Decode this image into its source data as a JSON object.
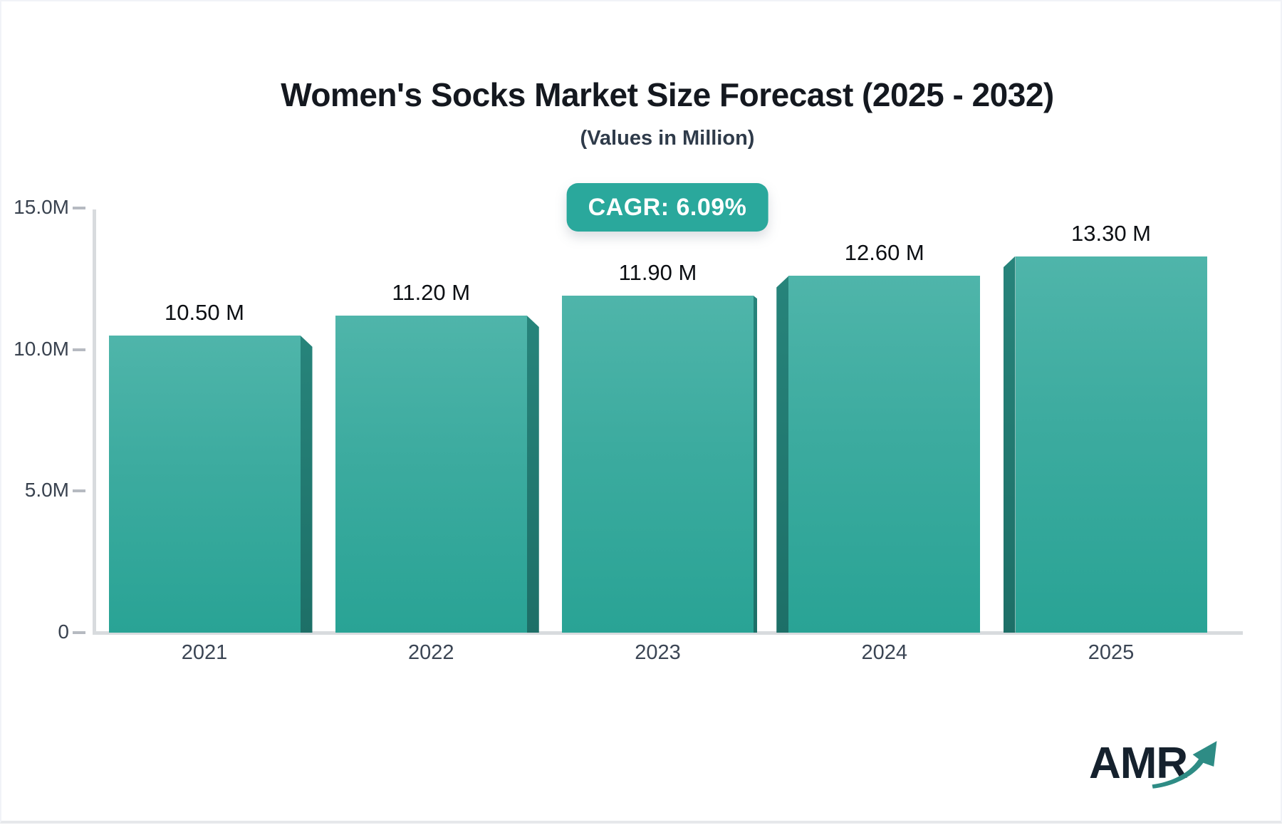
{
  "page": {
    "title": "Women's Socks Market Size Forecast (2025 - 2032)",
    "subtitle": "(Values in Million)",
    "cagr_label": "CAGR: 6.09%",
    "logo_text": "AMR"
  },
  "colors": {
    "bar_face_top": "#4fb5aa",
    "bar_face_bottom": "#29a395",
    "bar_side_top": "#27847b",
    "bar_side_bottom": "#1d6f67",
    "badge_bg": "#2aa89c",
    "badge_text": "#ffffff",
    "axis_line": "#d8dbde",
    "tick_dash": "#b6bac1",
    "tick_text": "#39424f",
    "title_text": "#14181f",
    "value_text": "#0c0f13",
    "logo_navy": "#15212d",
    "logo_arrow_teal": "#2e8c85"
  },
  "chart_data": {
    "type": "bar",
    "title": "Women's Socks Market Size Forecast (2025 - 2032)",
    "subtitle": "(Values in Million)",
    "cagr": "6.09%",
    "unit": "Million",
    "categories": [
      "2021",
      "2022",
      "2023",
      "2024",
      "2025"
    ],
    "values": [
      10.5,
      11.2,
      11.9,
      12.6,
      13.3
    ],
    "value_labels": [
      "10.50 M",
      "11.20 M",
      "11.90 M",
      "12.60 M",
      "13.30 M"
    ],
    "ylim": [
      0,
      15
    ],
    "yticks": [
      {
        "value": 0,
        "label": "0"
      },
      {
        "value": 5,
        "label": "5.0M"
      },
      {
        "value": 10,
        "label": "10.0M"
      },
      {
        "value": 15,
        "label": "15.0M"
      }
    ],
    "grid": false,
    "legend": false,
    "bar_style": "pseudo-3d",
    "legend_position": "none"
  }
}
